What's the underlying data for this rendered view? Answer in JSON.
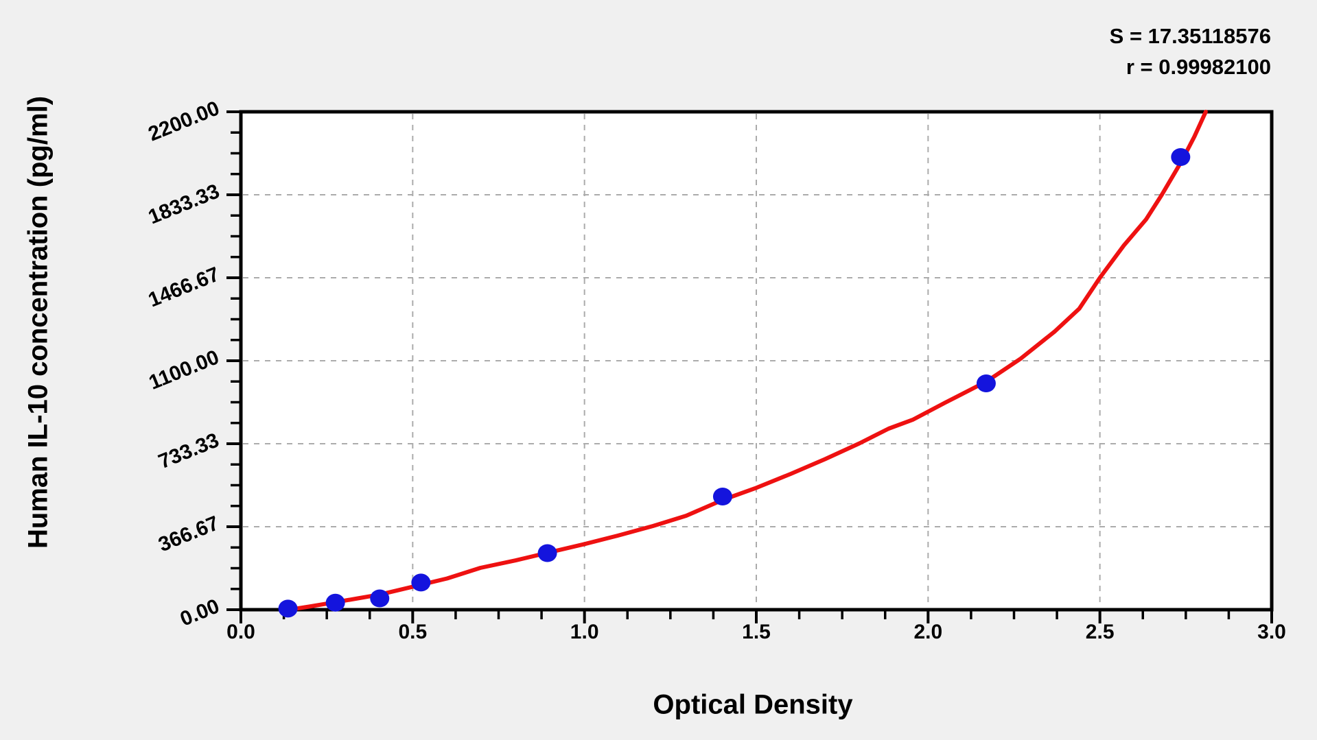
{
  "stats": {
    "s": "S = 17.35118576",
    "r": "r = 0.99982100"
  },
  "chart_data": {
    "type": "scatter",
    "title": "",
    "xlabel": "Optical Density",
    "ylabel": "Human IL-10 concentration (pg/ml)",
    "xlim": [
      0,
      3
    ],
    "ylim": [
      0,
      2200
    ],
    "grid": "dashed lines at major ticks",
    "legend": "none",
    "x_ticks": {
      "values": [
        0,
        0.5,
        1.0,
        1.5,
        2.0,
        2.5,
        3.0
      ],
      "labels": [
        "0.0",
        "0.5",
        "1.0",
        "1.5",
        "2.0",
        "2.5",
        "3.0"
      ],
      "minor_step": 0.125
    },
    "y_ticks": {
      "values": [
        0,
        366.67,
        733.33,
        1100,
        1466.67,
        1833.33,
        2200
      ],
      "labels": [
        "0.00",
        "366.67",
        "733.33",
        "1100.00",
        "1466.67",
        "1833.33",
        "2200.00"
      ],
      "minor_step": 91.667
    },
    "series": [
      {
        "name": "standard-points",
        "type": "scatter",
        "x": [
          0.137,
          0.275,
          0.404,
          0.524,
          0.892,
          1.402,
          2.169,
          2.735
        ],
        "y": [
          5,
          31,
          50,
          120,
          250,
          500,
          1000,
          2000
        ]
      }
    ],
    "fit_curve": {
      "name": "regression-curve",
      "x": [
        0.141,
        0.2,
        0.275,
        0.34,
        0.404,
        0.46,
        0.524,
        0.6,
        0.697,
        0.8,
        0.891,
        1.0,
        1.096,
        1.2,
        1.296,
        1.402,
        1.496,
        1.6,
        1.7,
        1.8,
        1.885,
        1.955,
        2.05,
        2.171,
        2.27,
        2.369,
        2.44,
        2.5,
        2.57,
        2.634,
        2.68,
        2.738,
        2.775,
        2.808
      ],
      "y": [
        0,
        14,
        33,
        50,
        67,
        87,
        110,
        138,
        185,
        218,
        251,
        290,
        327,
        370,
        415,
        485,
        536,
        600,
        665,
        735,
        800,
        839,
        915,
        1009,
        1110,
        1230,
        1330,
        1467,
        1610,
        1724,
        1833,
        1982,
        2090,
        2200
      ]
    },
    "fit_stats": {
      "S": "17.35118576",
      "r": "0.99982100"
    },
    "colors": {
      "background": "#f0f0f0",
      "plot_background": "#ffffff",
      "axis": "#000000",
      "grid": "#ababab",
      "curve": "#ee1111",
      "points": "#1414dd"
    }
  }
}
